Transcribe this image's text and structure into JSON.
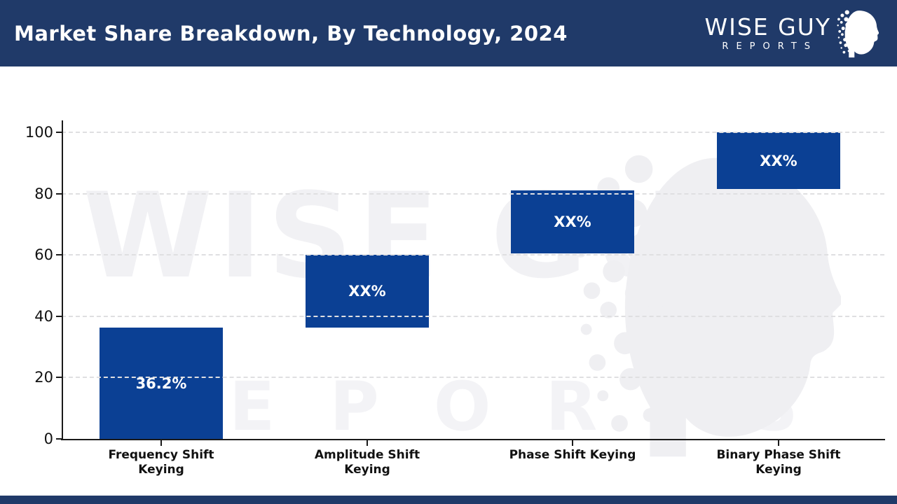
{
  "header": {
    "title": "Market Share Breakdown, By Technology, 2024",
    "brand": {
      "name": "WISE GUY",
      "sub": "REPORTS"
    }
  },
  "watermark": {
    "line1": "WISE GUY",
    "line2": "REPORTS"
  },
  "colors": {
    "navy": "#203a69",
    "bar_blue": "#0b4094",
    "grid": "#dfdfe1",
    "watermark_gray": "#f1f1f4",
    "bar_label": "#ffffff",
    "axis_text": "#111111"
  },
  "chart_data": {
    "type": "bar",
    "subtype": "waterfall",
    "title": "Market Share Breakdown, By Technology, 2024",
    "categories": [
      "Frequency Shift Keying",
      "Amplitude Shift Keying",
      "Phase Shift Keying",
      "Binary Phase Shift Keying"
    ],
    "series": [
      {
        "name": "Market Share (%)",
        "segments": [
          {
            "category": "Frequency Shift Keying",
            "base": 0,
            "top": 36.2,
            "label": "36.2%"
          },
          {
            "category": "Amplitude Shift Keying",
            "base": 36.2,
            "top": 60,
            "label": "XX%"
          },
          {
            "category": "Phase Shift Keying",
            "base": 60.5,
            "top": 81,
            "label": "XX%"
          },
          {
            "category": "Binary Phase Shift Keying",
            "base": 81.5,
            "top": 100,
            "label": "XX%"
          }
        ]
      }
    ],
    "xlabel": "",
    "ylabel": "",
    "ylim": [
      0,
      100
    ],
    "yticks": [
      0,
      20,
      40,
      60,
      80,
      100
    ],
    "grid": "horizontal-dashed",
    "legend": "none",
    "bar_color": "#0b4094"
  }
}
